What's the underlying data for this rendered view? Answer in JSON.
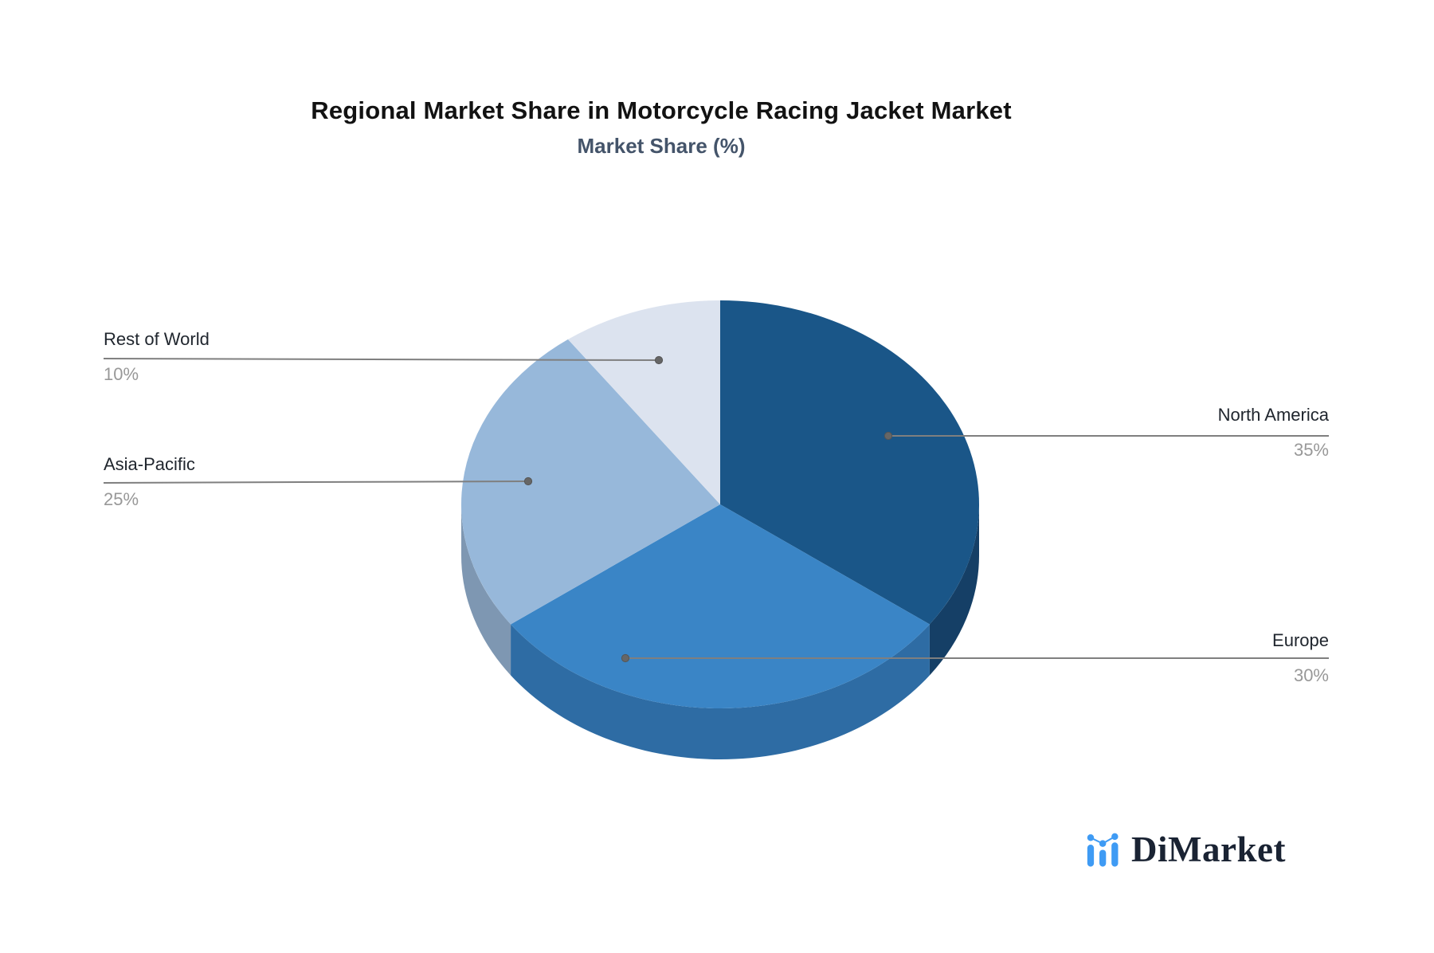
{
  "title": "Regional Market Share in Motorcycle Racing Jacket Market",
  "subtitle": "Market Share (%)",
  "branding": {
    "name": "DiMarket",
    "logo_icon": "bar-line-chart-icon",
    "icon_color": "#3F9BF4",
    "text_color": "#1A2333"
  },
  "chart_data": {
    "type": "pie",
    "style": "3d",
    "title": "Regional Market Share in Motorcycle Racing Jacket Market",
    "subtitle": "Market Share (%)",
    "unit": "%",
    "direction": "clockwise",
    "start_angle_deg": 0,
    "legend_position": "none",
    "label_style": "callout",
    "slices": [
      {
        "label": "North America",
        "value": 35,
        "value_text": "35%",
        "color": "#1A5688",
        "side_color": "#153F66"
      },
      {
        "label": "Europe",
        "value": 30,
        "value_text": "30%",
        "color": "#3A85C6",
        "side_color": "#2E6CA4"
      },
      {
        "label": "Asia-Pacific",
        "value": 25,
        "value_text": "25%",
        "color": "#97B8DA",
        "side_color": "#7E97B2"
      },
      {
        "label": "Rest of World",
        "value": 10,
        "value_text": "10%",
        "color": "#DCE3EF",
        "side_color": "#C2CCDD"
      }
    ],
    "callout_line_color": "#7F7F7F",
    "callout_dot_color": "#666666"
  }
}
